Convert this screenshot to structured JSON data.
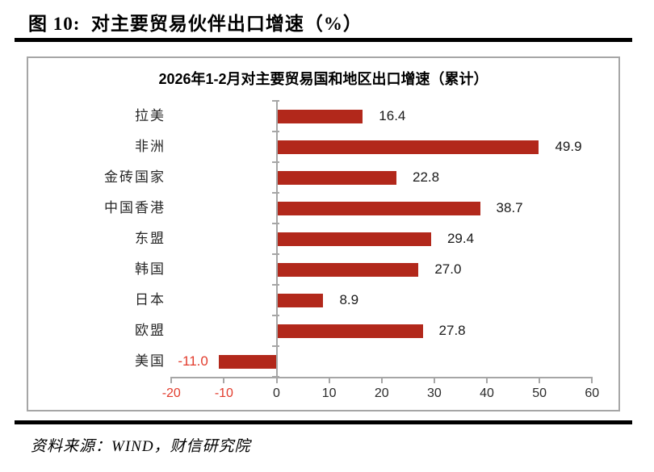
{
  "figure": {
    "header": "图 10:  对主要贸易伙伴出口增速（%）",
    "source": "资料来源：WIND，财信研究院"
  },
  "chart_data": {
    "type": "bar",
    "orientation": "horizontal",
    "title": "2026年1-2月对主要贸易国和地区出口增速（累计）",
    "categories": [
      "拉美",
      "非洲",
      "金砖国家",
      "中国香港",
      "东盟",
      "韩国",
      "日本",
      "欧盟",
      "美国"
    ],
    "values": [
      16.4,
      49.9,
      22.8,
      38.7,
      29.4,
      27.0,
      8.9,
      27.8,
      -11.0
    ],
    "value_labels": [
      "16.4",
      "49.9",
      "22.8",
      "38.7",
      "29.4",
      "27.0",
      "8.9",
      "27.8",
      "-11.0"
    ],
    "xlim": [
      -20,
      60
    ],
    "xticks": [
      -20,
      -10,
      0,
      10,
      20,
      30,
      40,
      50,
      60
    ],
    "grid": "off",
    "legend": "none",
    "colors": {
      "bar": "#B2281B",
      "negative_text": "#E23C2D",
      "axis": "#A6A6A6",
      "text": "#262626"
    }
  }
}
